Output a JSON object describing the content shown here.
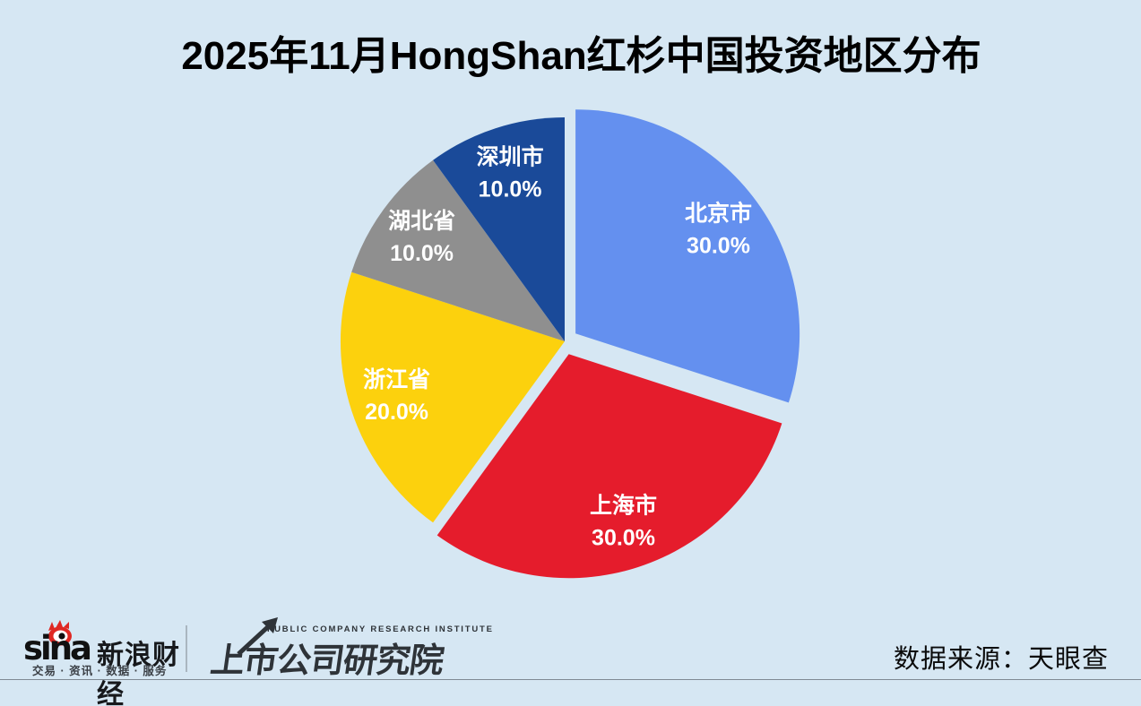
{
  "page": {
    "background_color": "#D6E7F3"
  },
  "header": {
    "title": "2025年11月HongShan红杉中国投资地区分布"
  },
  "chart_data": {
    "type": "pie",
    "title": "2025年11月HongShan红杉中国投资地区分布",
    "labels": [
      "北京市",
      "上海市",
      "浙江省",
      "湖北省",
      "深圳市"
    ],
    "values": [
      30.0,
      30.0,
      20.0,
      10.0,
      10.0
    ],
    "percent_labels": [
      "30.0%",
      "30.0%",
      "20.0%",
      "10.0%",
      "10.0%"
    ],
    "colors": [
      "#6490EF",
      "#E51C2C",
      "#FCD10D",
      "#8F8F8F",
      "#1A4A99"
    ],
    "exploded": [
      0.06,
      0.06,
      0,
      0,
      0
    ],
    "start_angle": "top",
    "direction": "clockwise",
    "slice_label_color": "#FFFFFF",
    "legend": "none",
    "source_note": "数据来源：天眼查"
  },
  "footer": {
    "sina": {
      "brand": "sina",
      "brand_cn": "新浪财经",
      "slogan": "交易 · 资讯 · 数据 · 服务",
      "eye_icon": "sina-eye-icon",
      "brand_red": "#DF2823"
    },
    "institute": {
      "caption": "PUBLIC COMPANY RESEARCH INSTITUTE",
      "name": "上市公司研究院",
      "arrow_icon": "trend-arrow-icon",
      "ink_color": "#2E3338"
    },
    "source": "数据来源：天眼查"
  }
}
